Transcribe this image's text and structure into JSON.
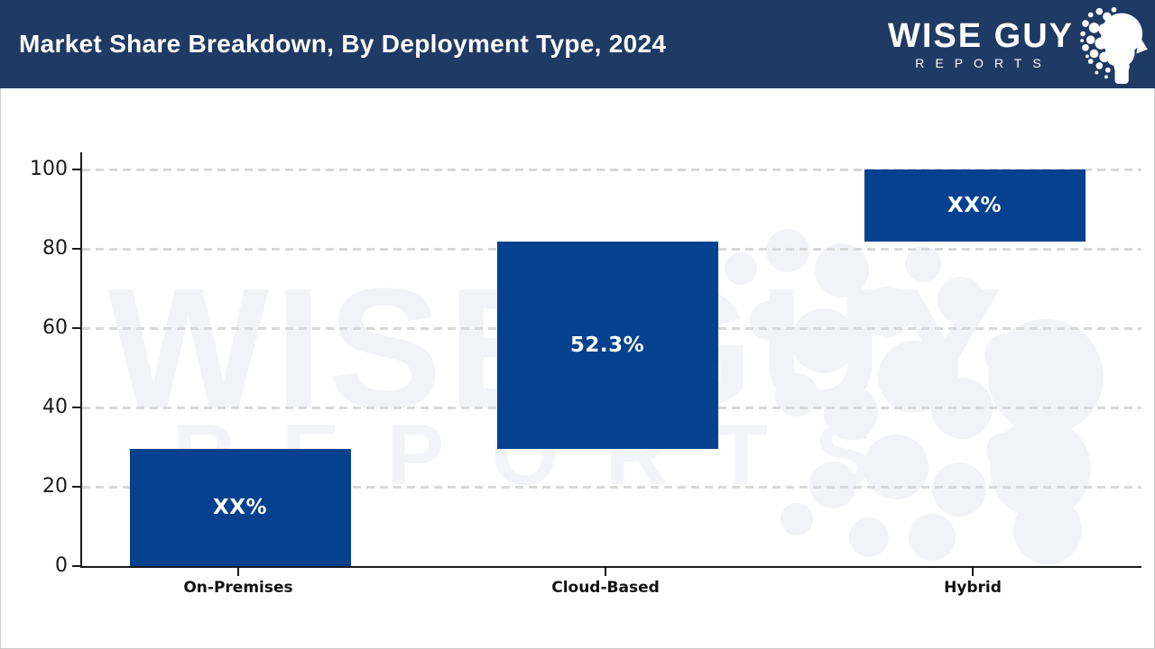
{
  "header": {
    "title": "Market Share Breakdown, By Deployment Type, 2024",
    "logo": {
      "wordmark": "WISE GUY",
      "subtext": "REPORTS"
    }
  },
  "watermark": {
    "wordmark": "WISE GUY",
    "subtext": "REPORTS"
  },
  "chart_data": {
    "type": "bar",
    "subtype": "floating-waterfall",
    "title": "Market Share Breakdown, By Deployment Type, 2024",
    "categories": [
      "On-Premises",
      "Cloud-Based",
      "Hybrid"
    ],
    "segments": [
      {
        "category": "On-Premises",
        "label": "XX%",
        "start": 0,
        "end": 29.5
      },
      {
        "category": "Cloud-Based",
        "label": "52.3%",
        "start": 29.5,
        "end": 81.8
      },
      {
        "category": "Hybrid",
        "label": "XX%",
        "start": 81.8,
        "end": 100
      }
    ],
    "yticks": [
      0,
      20,
      40,
      60,
      80,
      100
    ],
    "ylim": [
      0,
      105
    ],
    "xlabel": "",
    "ylabel": "",
    "grid": "horizontal dashed",
    "legend": "none",
    "colors": {
      "bar": "#05418f",
      "bar_label": "#ffffff",
      "header_bg": "#1f3a64",
      "grid": "#d8d8d8",
      "axis": "#1a1a1a",
      "watermark": "#f2f3f6"
    }
  }
}
